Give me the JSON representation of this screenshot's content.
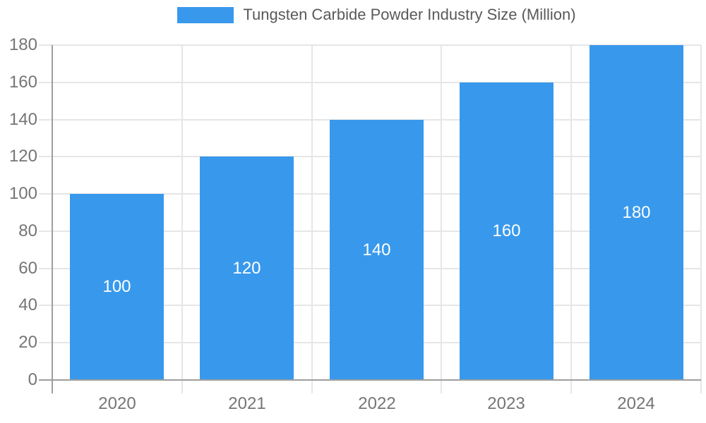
{
  "chart_data": {
    "type": "bar",
    "title": "Tungsten Carbide Powder Industry Size (Million)",
    "categories": [
      "2020",
      "2021",
      "2022",
      "2023",
      "2024"
    ],
    "values": [
      100,
      120,
      140,
      160,
      180
    ],
    "series": [
      {
        "name": "Tungsten Carbide Powder Industry Size (Million)",
        "values": [
          100,
          120,
          140,
          160,
          180
        ]
      }
    ],
    "xlabel": "",
    "ylabel": "",
    "ylim": [
      0,
      180
    ],
    "ytick_step": 20,
    "ytick_labels": [
      "0",
      "20",
      "40",
      "60",
      "80",
      "100",
      "120",
      "140",
      "160",
      "180"
    ],
    "grid": true,
    "legend_position": "top",
    "value_labels_shown_inside_bars": true
  },
  "legend": {
    "label": "Tungsten Carbide Powder Industry Size (Million)"
  },
  "colors": {
    "bar": "#3899EC",
    "axis": "#9e9e9e",
    "gridline": "#e6e6e6",
    "tick_text": "#757575",
    "legend_text": "#595959",
    "value_text": "#ffffff",
    "background": "#ffffff"
  }
}
